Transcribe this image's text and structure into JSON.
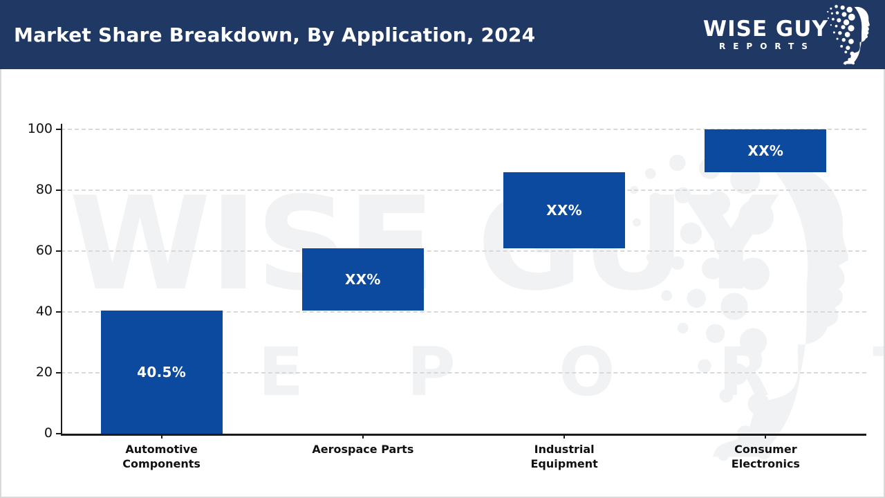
{
  "header": {
    "title": "Market Share Breakdown, By Application, 2024"
  },
  "logo": {
    "name": "WISE GUY",
    "sub": "REPORTS"
  },
  "watermark": {
    "line1": "WISE GUY",
    "line2": "R E P O R T S"
  },
  "colors": {
    "header_bg": "#1f3864",
    "bar": "#0b4a9e",
    "bar_label": "#ffffff",
    "gridline": "#d8d8d8",
    "axis": "#1a1a1a",
    "watermark": "#f1f2f4"
  },
  "chart_data": {
    "type": "bar",
    "subtype": "floating-waterfall",
    "title": "Market Share Breakdown, By Application, 2024",
    "categories": [
      "Automotive Components",
      "Aerospace Parts",
      "Industrial Equipment",
      "Consumer Electronics"
    ],
    "category_lines": [
      [
        "Automotive",
        "Components"
      ],
      [
        "Aerospace Parts"
      ],
      [
        "Industrial",
        "Equipment"
      ],
      [
        "Consumer",
        "Electronics"
      ]
    ],
    "segments": [
      {
        "category": "Automotive Components",
        "start": 0,
        "end": 40.5,
        "label": "40.5%"
      },
      {
        "category": "Aerospace Parts",
        "start": 40.5,
        "end": 61,
        "label": "XX%"
      },
      {
        "category": "Industrial Equipment",
        "start": 61,
        "end": 86,
        "label": "XX%"
      },
      {
        "category": "Consumer Electronics",
        "start": 86,
        "end": 100,
        "label": "XX%"
      }
    ],
    "xlabel": "",
    "ylabel": "",
    "ylim": [
      0,
      100
    ],
    "yticks": [
      0,
      20,
      40,
      60,
      80,
      100
    ],
    "grid": "horizontal-dashed",
    "legend": "none"
  }
}
